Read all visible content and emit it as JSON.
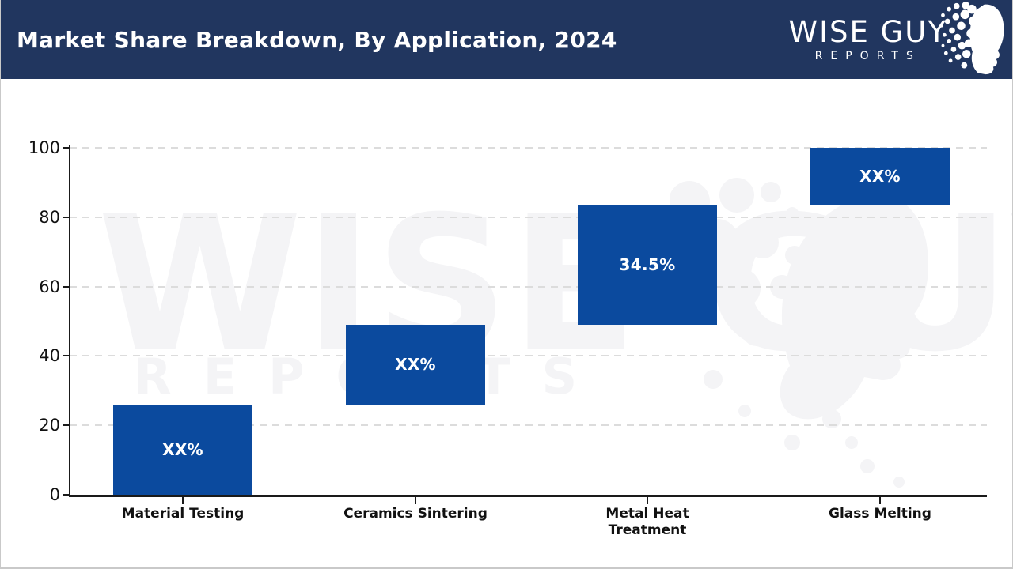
{
  "header": {
    "title": "Market Share Breakdown, By Application, 2024",
    "logo_text": "WISE GUY",
    "logo_subtext": "REPORTS"
  },
  "watermark": {
    "text": "WISE GUY",
    "subtext": "REPORTS"
  },
  "colors": {
    "header_bg": "#21365f",
    "bar_blue": "#0b4a9e",
    "bar_label_text": "#ffffff",
    "axis": "#1a1a1a",
    "gridline": "#dcdcdc",
    "watermark": "#f4f4f6"
  },
  "chart_data": {
    "type": "bar",
    "subtype": "floating-segment-waterfall",
    "title": "Market Share Breakdown, By Application, 2024",
    "categories": [
      "Material Testing",
      "Ceramics Sintering",
      "Metal Heat\nTreatment",
      "Glass Melting"
    ],
    "segments": [
      {
        "category": "Material Testing",
        "start": 0,
        "end": 26,
        "value_label": "XX%"
      },
      {
        "category": "Ceramics Sintering",
        "start": 26,
        "end": 49,
        "value_label": "XX%"
      },
      {
        "category": "Metal Heat\nTreatment",
        "start": 49,
        "end": 83.5,
        "value_label": "34.5%"
      },
      {
        "category": "Glass Melting",
        "start": 83.5,
        "end": 100,
        "value_label": "XX%"
      }
    ],
    "xlabel": "",
    "ylabel": "",
    "ylim": [
      0,
      101
    ],
    "yticks": [
      0,
      20,
      40,
      60,
      80,
      100
    ],
    "grid": "horizontal-dashed",
    "legend": "none",
    "bar_color": "#0b4a9e"
  }
}
